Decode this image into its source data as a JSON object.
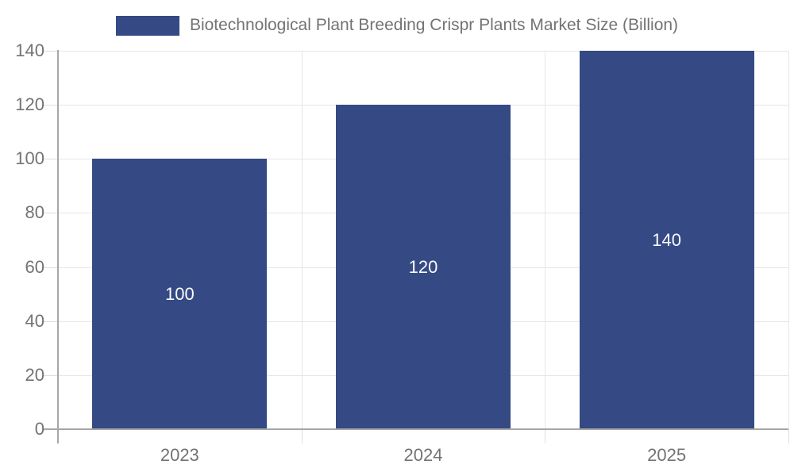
{
  "chart_data": {
    "type": "bar",
    "title": "Biotechnological Plant Breeding Crispr Plants Market Size (Billion)",
    "categories": [
      "2023",
      "2024",
      "2025"
    ],
    "values": [
      100,
      120,
      140
    ],
    "bar_labels": [
      "100",
      "120",
      "140"
    ],
    "yticks": [
      0,
      20,
      40,
      60,
      80,
      100,
      120,
      140
    ],
    "ylim": [
      0,
      140
    ],
    "xlabel": "",
    "ylabel": "",
    "grid": true,
    "legend_position": "top-center",
    "bar_label_position": "center-inside",
    "colors": {
      "bar": "#354a84",
      "grid": "#e6e6e6",
      "axis": "#a6a6a6",
      "tick": "#dedede",
      "text": "#737373",
      "bar_label": "#fafafa",
      "background": "#ffffff"
    }
  }
}
